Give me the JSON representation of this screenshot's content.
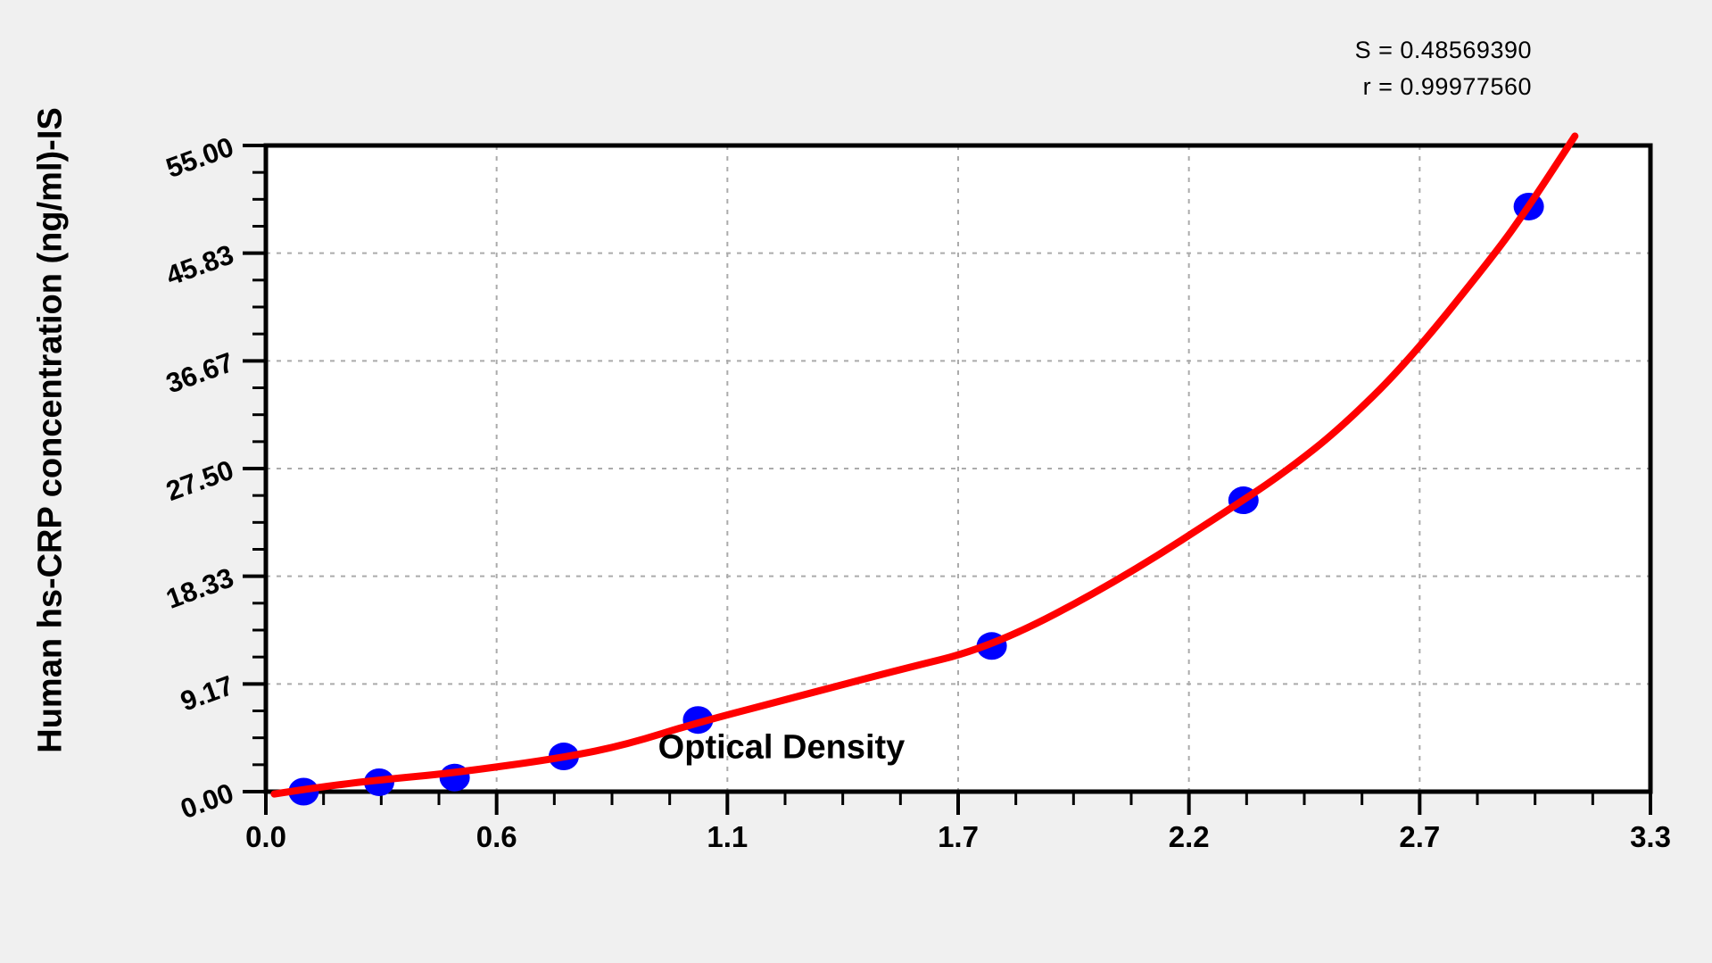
{
  "chart_data": {
    "type": "scatter",
    "title": "",
    "xlabel": "Optical Density",
    "ylabel": "Human hs-CRP concentration (ng/ml)-IS",
    "annotations": {
      "s_label": "S = 0.48569390",
      "r_label": "r = 0.99977560"
    },
    "x_axis": {
      "min": 0,
      "max": 3.3,
      "major_values": [
        0,
        0.55,
        1.1,
        1.65,
        2.2,
        2.75,
        3.3
      ],
      "tick_labels": [
        "0.0",
        "0.6",
        "1.1",
        "1.7",
        "2.2",
        "2.7",
        "3.3"
      ],
      "minor_divisions": 4
    },
    "y_axis": {
      "min": 0,
      "max": 55,
      "major_values": [
        0,
        9.1667,
        18.3333,
        27.5,
        36.6667,
        45.8333,
        55
      ],
      "tick_labels": [
        "0.00",
        "9.17",
        "18.33",
        "27.50",
        "36.67",
        "45.83",
        "55.00"
      ],
      "minor_divisions": 4
    },
    "grid": {
      "show": true,
      "style": "dashed",
      "color": "#ababab"
    },
    "legend": {
      "show": false
    },
    "series": [
      {
        "name": "standard-points",
        "type": "scatter",
        "color": "#0000ff",
        "x": [
          0.09,
          0.27,
          0.45,
          0.71,
          1.03,
          1.73,
          2.33,
          3.01
        ],
        "y": [
          0.0,
          0.8,
          1.2,
          3.0,
          6.1,
          12.4,
          24.8,
          49.8
        ]
      },
      {
        "name": "fitted-curve",
        "type": "line",
        "color": "#ff0000",
        "x": [
          0.02,
          0.13,
          0.27,
          0.45,
          0.71,
          0.86,
          1.03,
          1.28,
          1.49,
          1.73,
          2.03,
          2.33,
          2.44,
          2.56,
          2.72,
          2.93,
          3.01,
          3.12
        ],
        "y": [
          -0.2,
          0.4,
          1.0,
          1.6,
          2.9,
          4.0,
          5.9,
          8.2,
          10.2,
          12.3,
          17.9,
          24.8,
          27.5,
          30.9,
          36.5,
          45.8,
          49.8,
          55.8
        ]
      }
    ],
    "colors": {
      "background": "#f0f0f0",
      "plot_background": "#ffffff",
      "axis": "#000000",
      "point": "#0000ff",
      "curve": "#ff0000"
    }
  }
}
